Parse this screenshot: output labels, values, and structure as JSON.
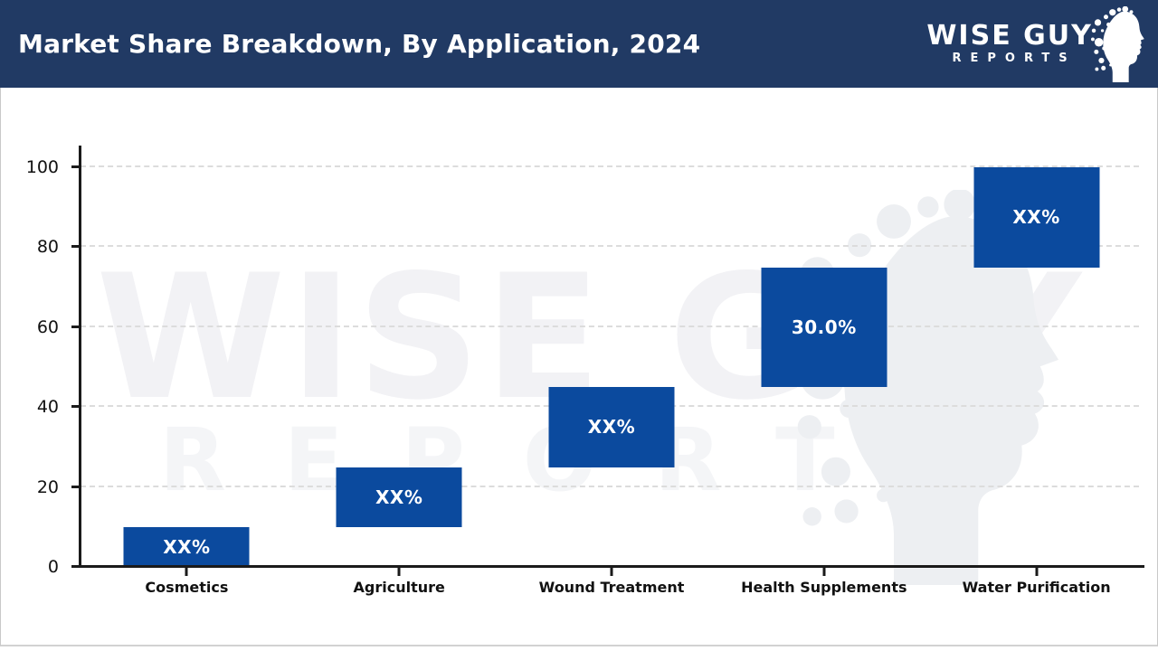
{
  "header": {
    "title": "Market Share Breakdown, By Application, 2024",
    "logo": {
      "wordmark": "WISE GUY",
      "subtext": "REPORTS"
    }
  },
  "watermark": {
    "line1": "WISE GUY",
    "line2": "REPORTS"
  },
  "chart_data": {
    "type": "bar",
    "subtype": "floating-waterfall",
    "title": "Market Share Breakdown, By Application, 2024",
    "categories": [
      "Cosmetics",
      "Agriculture",
      "Wound Treatment",
      "Health Supplements",
      "Water Purification"
    ],
    "bars": [
      {
        "category": "Cosmetics",
        "start": 0,
        "end": 10,
        "label": "XX%"
      },
      {
        "category": "Agriculture",
        "start": 10,
        "end": 25,
        "label": "XX%"
      },
      {
        "category": "Wound Treatment",
        "start": 25,
        "end": 45,
        "label": "XX%"
      },
      {
        "category": "Health Supplements",
        "start": 45,
        "end": 75,
        "label": "30.0%"
      },
      {
        "category": "Water Purification",
        "start": 75,
        "end": 100,
        "label": "XX%"
      }
    ],
    "xlabel": "",
    "ylabel": "",
    "ylim": [
      0,
      105
    ],
    "yticks": [
      0,
      20,
      40,
      60,
      80,
      100
    ],
    "grid": "horizontal-dashed",
    "legend": "none",
    "colors": {
      "bar": "#0b4a9e",
      "header_bg": "#213a64",
      "axis": "#1a1a1a",
      "gridline": "#dcdcdc",
      "watermark_text": "#f2f2f5",
      "watermark_face": "#edeff2",
      "title_text": "#ffffff"
    }
  }
}
